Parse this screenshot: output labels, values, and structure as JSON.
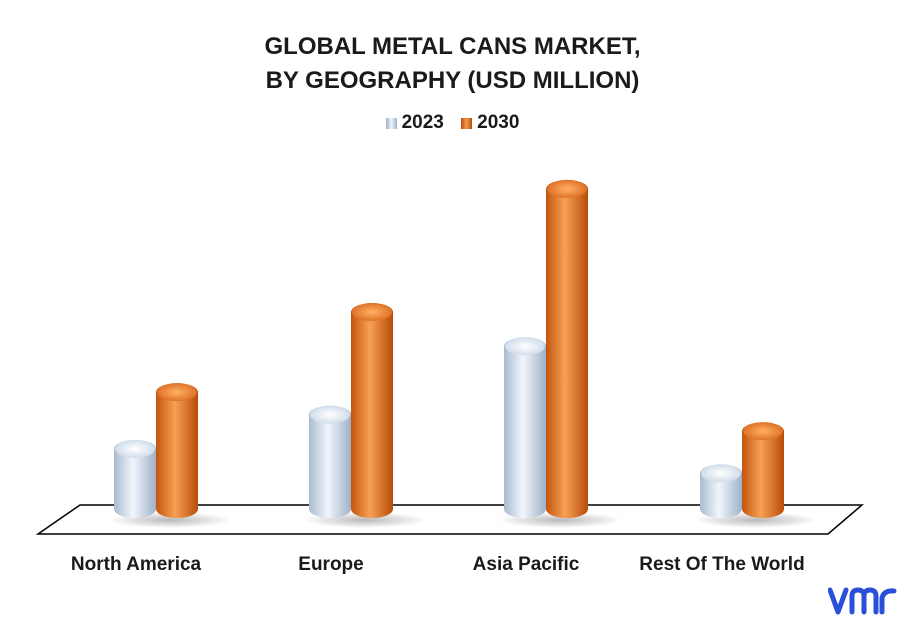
{
  "chart_data": {
    "type": "bar",
    "title_lines": [
      "GLOBAL METAL CANS MARKET,",
      "BY GEOGRAPHY (USD MILLION)"
    ],
    "categories": [
      "North America",
      "Europe",
      "Asia Pacific",
      "Rest Of The World"
    ],
    "series": [
      {
        "name": "2023",
        "color": "#cfdff0",
        "values": [
          80,
          115,
          185,
          55
        ]
      },
      {
        "name": "2030",
        "color": "#e87722",
        "values": [
          138,
          220,
          346,
          98
        ]
      }
    ],
    "ylim": [
      0,
      350
    ],
    "grid": false,
    "legend_position": "top-center",
    "style": "3d-cylinder"
  },
  "brand": {
    "logo_icon": "vmr-logo-icon",
    "color": "#2b4fd8"
  }
}
